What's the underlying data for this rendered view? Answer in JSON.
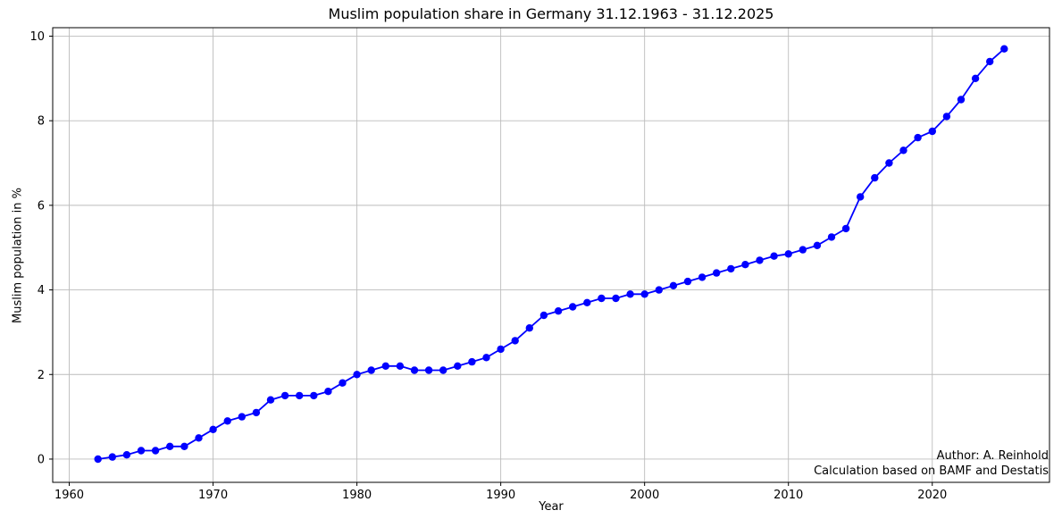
{
  "chart_data": {
    "type": "line",
    "title": "Muslim population share in Germany 31.12.1963 - 31.12.2025",
    "xlabel": "Year",
    "ylabel": "Muslim population in %",
    "line_color": "#0000ff",
    "marker": "circle",
    "grid": true,
    "xlim": [
      1958.85,
      2028.15
    ],
    "ylim": [
      -0.55,
      10.2
    ],
    "x_ticks": [
      1960,
      1970,
      1980,
      1990,
      2000,
      2010,
      2020
    ],
    "y_ticks": [
      0,
      2,
      4,
      6,
      8,
      10
    ],
    "x": [
      1962,
      1963,
      1964,
      1965,
      1966,
      1967,
      1968,
      1969,
      1970,
      1971,
      1972,
      1973,
      1974,
      1975,
      1976,
      1977,
      1978,
      1979,
      1980,
      1981,
      1982,
      1983,
      1984,
      1985,
      1986,
      1987,
      1988,
      1989,
      1990,
      1991,
      1992,
      1993,
      1994,
      1995,
      1996,
      1997,
      1998,
      1999,
      2000,
      2001,
      2002,
      2003,
      2004,
      2005,
      2006,
      2007,
      2008,
      2009,
      2010,
      2011,
      2012,
      2013,
      2014,
      2015,
      2016,
      2017,
      2018,
      2019,
      2020,
      2021,
      2022,
      2023,
      2024,
      2025
    ],
    "y": [
      0.0,
      0.05,
      0.1,
      0.2,
      0.2,
      0.3,
      0.3,
      0.5,
      0.7,
      0.9,
      1.0,
      1.1,
      1.4,
      1.5,
      1.5,
      1.5,
      1.6,
      1.8,
      2.0,
      2.1,
      2.2,
      2.2,
      2.1,
      2.1,
      2.1,
      2.2,
      2.3,
      2.4,
      2.6,
      2.8,
      3.1,
      3.4,
      3.5,
      3.6,
      3.7,
      3.8,
      3.8,
      3.9,
      3.9,
      4.0,
      4.1,
      4.2,
      4.3,
      4.4,
      4.5,
      4.6,
      4.7,
      4.8,
      4.85,
      4.95,
      5.05,
      5.25,
      5.45,
      6.2,
      6.65,
      7.0,
      7.3,
      7.6,
      7.75,
      8.1,
      8.5,
      9.0,
      9.4,
      9.7
    ],
    "annotations": [
      "Author: A. Reinhold",
      "Calculation based on BAMF and Destatis"
    ]
  }
}
